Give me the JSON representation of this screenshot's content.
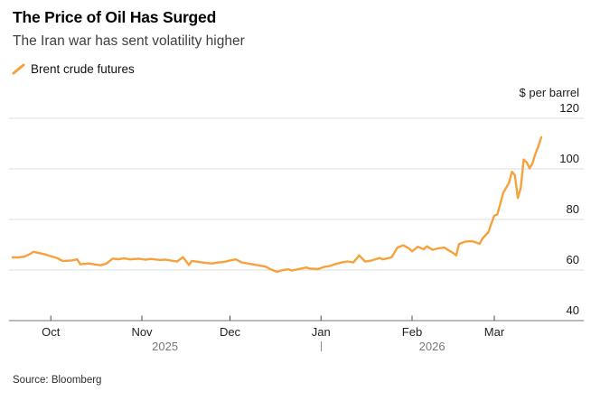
{
  "header": {
    "title": "The Price of Oil Has Surged",
    "subtitle": "The Iran war has sent volatility higher"
  },
  "legend": {
    "label": "Brent crude futures",
    "color": "#f6a13c"
  },
  "footer": {
    "source": "Source: Bloomberg"
  },
  "colors": {
    "line": "#f6a13c",
    "grid": "#dcdcdc",
    "axis": "#a3a3a3",
    "tick": "#4a4a4a"
  },
  "chart_data": {
    "type": "line",
    "title": "The Price of Oil Has Surged",
    "subtitle": "The Iran war has sent volatility higher",
    "unit_label": "$ per barrel",
    "ylim": [
      40,
      120
    ],
    "yticks": [
      40,
      60,
      80,
      100,
      120
    ],
    "grid": "horizontal",
    "legend_position": "top-left",
    "xticks": [
      {
        "date": "2025-10-01",
        "label": "Oct"
      },
      {
        "date": "2025-11-01",
        "label": "Nov"
      },
      {
        "date": "2025-12-01",
        "label": "Dec"
      },
      {
        "date": "2026-01-01",
        "label": "Jan"
      },
      {
        "date": "2026-02-01",
        "label": "Feb"
      },
      {
        "date": "2026-03-01",
        "label": "Mar"
      }
    ],
    "year_labels": [
      "2025",
      "2026"
    ],
    "year_divider_date": "2026-01-01",
    "series": [
      {
        "name": "Brent crude futures",
        "color": "#f6a13c",
        "points": [
          [
            "2025-09-18",
            65.0
          ],
          [
            "2025-09-20",
            65.0
          ],
          [
            "2025-09-22",
            65.3
          ],
          [
            "2025-09-24",
            66.4
          ],
          [
            "2025-09-25",
            67.2
          ],
          [
            "2025-09-27",
            66.7
          ],
          [
            "2025-09-29",
            66.2
          ],
          [
            "2025-10-01",
            65.5
          ],
          [
            "2025-10-03",
            64.8
          ],
          [
            "2025-10-05",
            63.6
          ],
          [
            "2025-10-08",
            63.8
          ],
          [
            "2025-10-10",
            64.2
          ],
          [
            "2025-10-11",
            62.3
          ],
          [
            "2025-10-14",
            62.6
          ],
          [
            "2025-10-16",
            62.2
          ],
          [
            "2025-10-18",
            61.9
          ],
          [
            "2025-10-20",
            62.6
          ],
          [
            "2025-10-22",
            64.5
          ],
          [
            "2025-10-24",
            64.3
          ],
          [
            "2025-10-26",
            64.6
          ],
          [
            "2025-10-28",
            64.2
          ],
          [
            "2025-10-31",
            64.5
          ],
          [
            "2025-11-02",
            64.1
          ],
          [
            "2025-11-04",
            64.4
          ],
          [
            "2025-11-07",
            64.0
          ],
          [
            "2025-11-09",
            64.1
          ],
          [
            "2025-11-11",
            63.7
          ],
          [
            "2025-11-13",
            63.4
          ],
          [
            "2025-11-15",
            65.1
          ],
          [
            "2025-11-17",
            62.0
          ],
          [
            "2025-11-18",
            63.6
          ],
          [
            "2025-11-21",
            63.1
          ],
          [
            "2025-11-23",
            62.8
          ],
          [
            "2025-11-25",
            62.6
          ],
          [
            "2025-11-27",
            63.0
          ],
          [
            "2025-11-29",
            63.2
          ],
          [
            "2025-12-01",
            63.8
          ],
          [
            "2025-12-03",
            64.2
          ],
          [
            "2025-12-05",
            63.0
          ],
          [
            "2025-12-07",
            62.6
          ],
          [
            "2025-12-09",
            62.2
          ],
          [
            "2025-12-11",
            61.8
          ],
          [
            "2025-12-13",
            61.4
          ],
          [
            "2025-12-15",
            60.2
          ],
          [
            "2025-12-17",
            59.3
          ],
          [
            "2025-12-19",
            60.0
          ],
          [
            "2025-12-21",
            60.3
          ],
          [
            "2025-12-22",
            59.8
          ],
          [
            "2025-12-25",
            60.5
          ],
          [
            "2025-12-27",
            61.0
          ],
          [
            "2025-12-28",
            60.6
          ],
          [
            "2025-12-31",
            60.4
          ],
          [
            "2026-01-02",
            61.2
          ],
          [
            "2026-01-04",
            61.6
          ],
          [
            "2026-01-06",
            62.4
          ],
          [
            "2026-01-08",
            63.0
          ],
          [
            "2026-01-10",
            63.4
          ],
          [
            "2026-01-12",
            63.0
          ],
          [
            "2026-01-14",
            65.8
          ],
          [
            "2026-01-16",
            63.4
          ],
          [
            "2026-01-18",
            63.7
          ],
          [
            "2026-01-21",
            64.8
          ],
          [
            "2026-01-22",
            64.2
          ],
          [
            "2026-01-25",
            65.0
          ],
          [
            "2026-01-27",
            68.9
          ],
          [
            "2026-01-29",
            69.8
          ],
          [
            "2026-01-31",
            68.5
          ],
          [
            "2026-02-01",
            67.4
          ],
          [
            "2026-02-03",
            69.2
          ],
          [
            "2026-02-05",
            68.2
          ],
          [
            "2026-02-06",
            69.4
          ],
          [
            "2026-02-08",
            68.0
          ],
          [
            "2026-02-10",
            68.6
          ],
          [
            "2026-02-12",
            68.9
          ],
          [
            "2026-02-13",
            68.1
          ],
          [
            "2026-02-15",
            66.7
          ],
          [
            "2026-02-16",
            65.8
          ],
          [
            "2026-02-17",
            70.3
          ],
          [
            "2026-02-19",
            71.2
          ],
          [
            "2026-02-21",
            71.4
          ],
          [
            "2026-02-22",
            71.2
          ],
          [
            "2026-02-24",
            70.4
          ],
          [
            "2026-02-25",
            72.5
          ],
          [
            "2026-02-27",
            75.0
          ],
          [
            "2026-02-28",
            78.5
          ],
          [
            "2026-03-01",
            81.5
          ],
          [
            "2026-03-02",
            82.0
          ],
          [
            "2026-03-03",
            86.0
          ],
          [
            "2026-03-04",
            90.5
          ],
          [
            "2026-03-06",
            94.5
          ],
          [
            "2026-03-07",
            98.9
          ],
          [
            "2026-03-08",
            97.5
          ],
          [
            "2026-03-09",
            88.5
          ],
          [
            "2026-03-10",
            92.5
          ],
          [
            "2026-03-11",
            103.7
          ],
          [
            "2026-03-12",
            102.6
          ],
          [
            "2026-03-13",
            100.2
          ],
          [
            "2026-03-14",
            102.3
          ],
          [
            "2026-03-15",
            106.0
          ],
          [
            "2026-03-16",
            109.0
          ],
          [
            "2026-03-17",
            112.5
          ]
        ]
      }
    ]
  }
}
